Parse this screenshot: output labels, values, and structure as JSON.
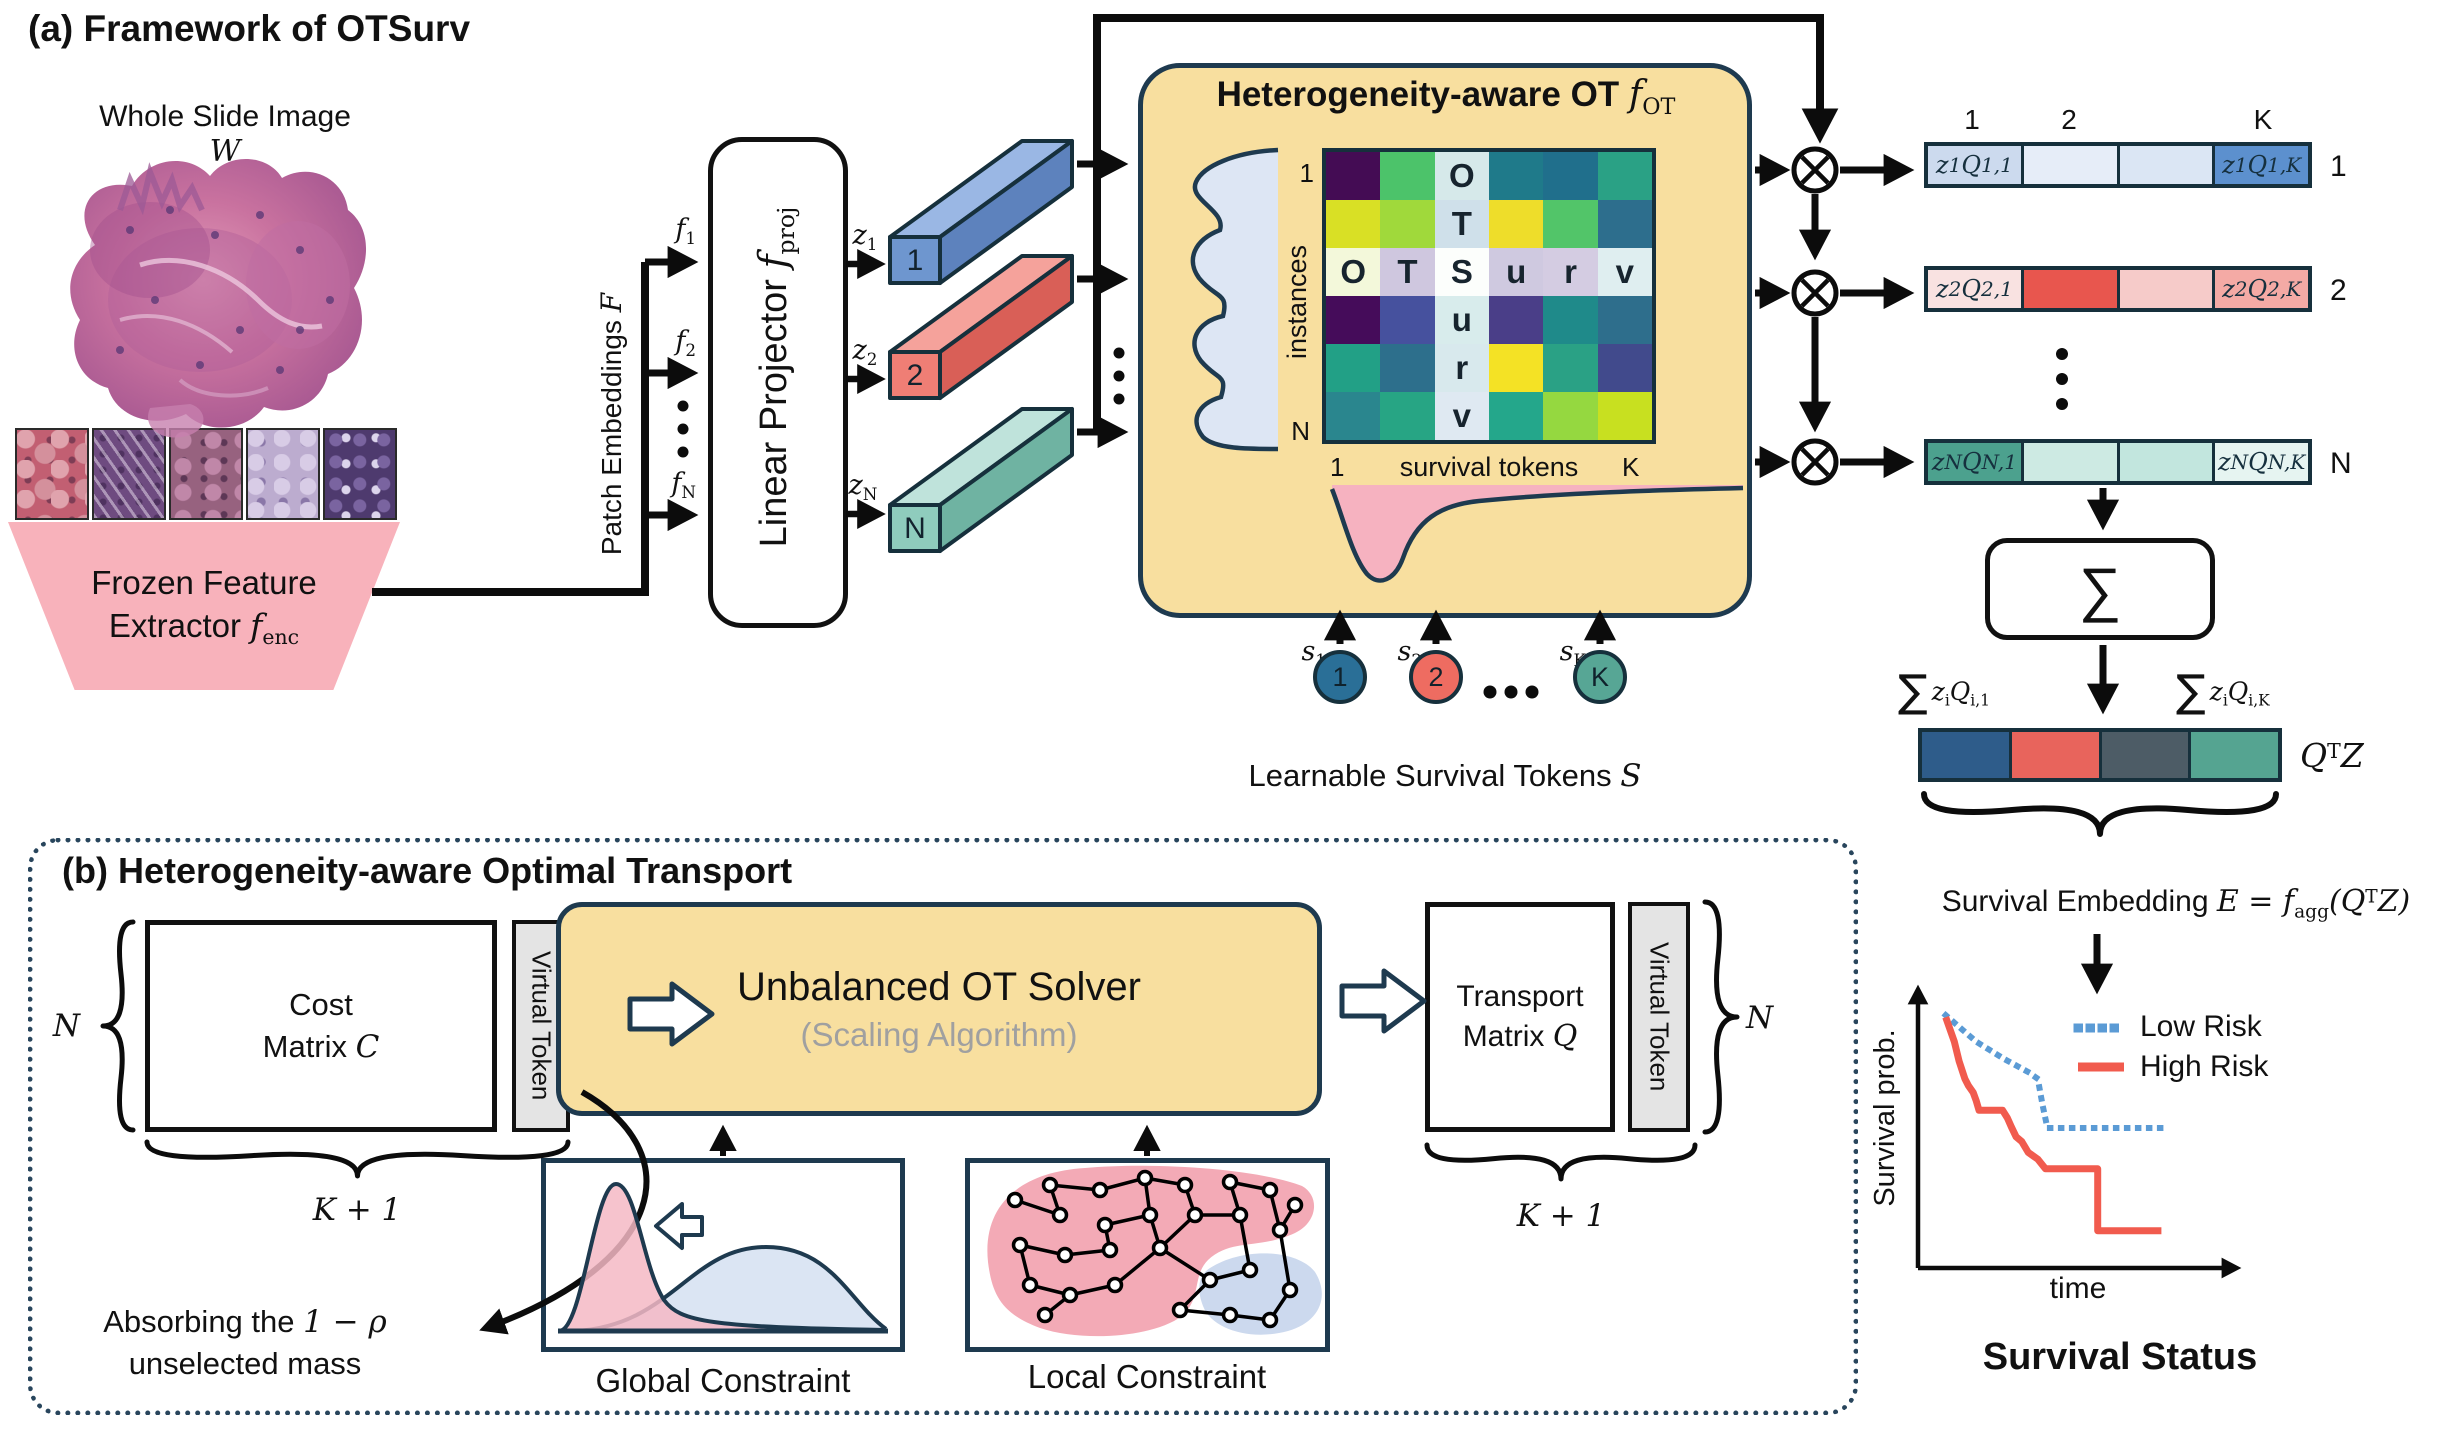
{
  "colors": {
    "outline_navy": "#1e3a4f",
    "box_yellow": "#f8df9f",
    "extractor_pink": "#f8b2bb",
    "low_risk_blue": "#5b9bd5",
    "high_risk_red": "#f15b4e"
  },
  "panel_a": {
    "title": "(a) Framework of OTSurv",
    "wsi_label": "Whole Slide Image",
    "wsi_var": "W",
    "extractor_line1": "Frozen Feature",
    "extractor_line2": "Extractor",
    "extractor_math": "f_{enc}",
    "patch_embeddings_label": "Patch Embeddings",
    "patch_embeddings_var": "F",
    "f_labels": [
      "f_{1}",
      "f_{2}",
      "f_{N}"
    ],
    "projector_label": "Linear Projector",
    "projector_math": "f_{proj}",
    "z_labels": [
      "z_{1}",
      "z_{2}",
      "z_{N}"
    ],
    "z_bar_numbers": [
      "1",
      "2",
      "N"
    ],
    "ot_box": {
      "title": "Heterogeneity-aware OT",
      "title_math": "f_{OT}",
      "row_axis": "instances",
      "row_first": "1",
      "row_last": "N",
      "col_axis": "survival tokens",
      "col_first": "1",
      "col_last": "K",
      "matrix_colors": [
        [
          "#440c54",
          "#4cc36a",
          "#d6e9ea",
          "#1f7a8a",
          "#206f8c",
          "#2aa185"
        ],
        [
          "#d9e025",
          "#a0d93b",
          "#cfe0ea",
          "#eedd2a",
          "#52c569",
          "#2d6e8d"
        ],
        [
          "#f3f8da",
          "#cfc7df",
          "#fcfefc",
          "#cfc9e0",
          "#d4cce2",
          "#dfeef0"
        ],
        [
          "#450c5a",
          "#46519e",
          "#d8ecec",
          "#4a3e88",
          "#1f8a8a",
          "#2e6e8c"
        ],
        [
          "#22a086",
          "#2d6f8c",
          "#d8e9ed",
          "#f4e225",
          "#2aa185",
          "#414a8c"
        ],
        [
          "#2a868e",
          "#27a584",
          "#dfe9f2",
          "#24a78b",
          "#95d840",
          "#c8e020"
        ]
      ],
      "matrix_letters": [
        [
          "",
          "",
          "O",
          "",
          "",
          ""
        ],
        [
          "",
          "",
          "T",
          "",
          "",
          ""
        ],
        [
          "O",
          "T",
          "S",
          "u",
          "r",
          "v"
        ],
        [
          "",
          "",
          "u",
          "",
          "",
          ""
        ],
        [
          "",
          "",
          "r",
          "",
          "",
          ""
        ],
        [
          "",
          "",
          "v",
          "",
          "",
          ""
        ]
      ]
    },
    "survival_tokens": {
      "label": "Learnable Survival Tokens",
      "label_var": "S",
      "s_labels": [
        "s_{1}",
        "s_{2}",
        "s_{K}"
      ],
      "token_numbers": [
        "1",
        "2",
        "K"
      ],
      "token_colors": [
        "#2a6f97",
        "#ee6c61",
        "#57a695"
      ]
    },
    "result_rows": {
      "col_headers": [
        "1",
        "2",
        "K"
      ],
      "rows": [
        {
          "side": "1",
          "first": "z_{1}Q_{1,1}",
          "last": "z_{1}Q_{1,K}",
          "cells": [
            "#ccdaee",
            "#e6edf8",
            "#dbe6f4",
            "#5c90ce"
          ]
        },
        {
          "side": "2",
          "first": "z_{2}Q_{2,1}",
          "last": "z_{2}Q_{2,K}",
          "cells": [
            "#f9e2e1",
            "#e8564e",
            "#f6cbc9",
            "#f4aaa5"
          ]
        },
        {
          "side": "N",
          "first": "z_{N}Q_{N,1}",
          "last": "z_{N}Q_{N,K}",
          "cells": [
            "#4ca18e",
            "#cdeae3",
            "#c2e6de",
            "#e6f4f1"
          ]
        }
      ]
    },
    "aggregation": {
      "sum_symbol": "∑",
      "sum_left": "z_{i}Q_{i,1}",
      "sum_right": "z_{i}Q_{i,K}",
      "qtz_cells": [
        "#2e5c8a",
        "#e8645c",
        "#4d5c66",
        "#55a491"
      ],
      "qtz_label": "Q^{T}Z",
      "embedding_text": "Survival Embedding",
      "embedding_math": "E = f_{agg}(Q^{T}Z)"
    },
    "survival_plot": {
      "ylabel": "Survival prob.",
      "xlabel": "time",
      "title": "Survival Status",
      "legend": [
        {
          "label": "Low Risk",
          "color": "#5b9bd5",
          "style": "dotted"
        },
        {
          "label": "High Risk",
          "color": "#f15b4e",
          "style": "solid"
        }
      ],
      "low_risk": [
        [
          0.074,
          0.131
        ],
        [
          0.169,
          0.224
        ],
        [
          0.258,
          0.286
        ],
        [
          0.33,
          0.33
        ],
        [
          0.362,
          0.355
        ],
        [
          0.377,
          0.448
        ],
        [
          0.392,
          0.528
        ],
        [
          0.777,
          0.528
        ]
      ],
      "high_risk": [
        [
          0.074,
          0.138
        ],
        [
          0.101,
          0.224
        ],
        [
          0.116,
          0.293
        ],
        [
          0.134,
          0.355
        ],
        [
          0.145,
          0.379
        ],
        [
          0.16,
          0.403
        ],
        [
          0.169,
          0.431
        ],
        [
          0.178,
          0.466
        ],
        [
          0.252,
          0.466
        ],
        [
          0.267,
          0.493
        ],
        [
          0.279,
          0.524
        ],
        [
          0.294,
          0.559
        ],
        [
          0.312,
          0.576
        ],
        [
          0.332,
          0.614
        ],
        [
          0.362,
          0.638
        ],
        [
          0.386,
          0.672
        ],
        [
          0.549,
          0.672
        ],
        [
          0.549,
          0.89
        ],
        [
          0.748,
          0.89
        ]
      ]
    }
  },
  "panel_b": {
    "title": "(b) Heterogeneity-aware Optimal Transport",
    "cost_matrix": {
      "line1": "Cost",
      "line2": "Matrix",
      "math": "C",
      "virtual": "Virtual Token",
      "n_label": "N",
      "k_label": "K + 1"
    },
    "solver": {
      "title": "Unbalanced OT Solver",
      "subtitle": "(Scaling Algorithm)"
    },
    "transport_matrix": {
      "line1": "Transport",
      "line2": "Matrix",
      "math": "Q",
      "virtual": "Virtual Token",
      "n_label": "N",
      "k_label": "K + 1"
    },
    "absorbing_text": "Absorbing the",
    "absorbing_math": "1 − ρ",
    "absorbing_line2": "unselected mass",
    "global_constraint_label": "Global Constraint",
    "local_constraint_label": "Local Constraint"
  }
}
